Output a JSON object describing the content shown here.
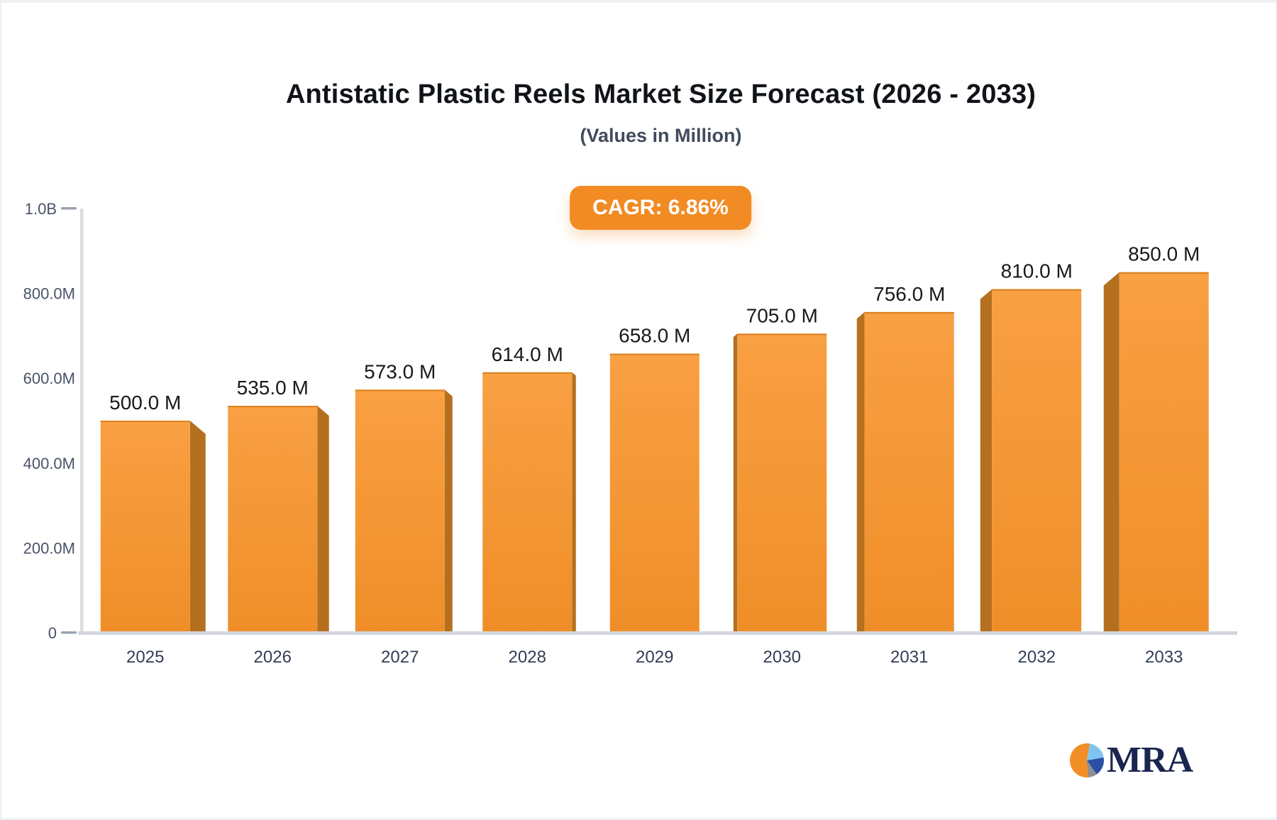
{
  "header": {
    "title": "Antistatic Plastic Reels Market Size Forecast (2026 - 2033)",
    "subtitle": "(Values in Million)",
    "cagr_label": "CAGR: 6.86%"
  },
  "branding": {
    "logo_text": "MRA"
  },
  "colors": {
    "bar_face_top": "#F9A043",
    "bar_face_bottom": "#EF8E28",
    "bar_side": "#B5701F",
    "bar_top_edge": "#D8801F",
    "badge_bg": "#F28B24",
    "badge_text": "#FFFFFF",
    "axis_line": "#DADCE1",
    "baseline": "#D3D7DC",
    "tick_dash": "#9BA3B0",
    "y_tick_label": "#4A5468",
    "x_tick_label": "#323E56",
    "value_label": "#17191D",
    "title": "#101318",
    "subtitle": "#414B5C",
    "logo_navy": "#1A2550",
    "logo_orange": "#F28E26",
    "logo_lightblue": "#7FC4F0",
    "logo_blue": "#2B4FA2",
    "logo_gray": "#8E8E93"
  },
  "chart_data": {
    "type": "bar",
    "title": "Antistatic Plastic Reels Market Size Forecast (2026 - 2033)",
    "subtitle": "(Values in Million)",
    "cagr": "6.86%",
    "categories": [
      "2025",
      "2026",
      "2027",
      "2028",
      "2029",
      "2030",
      "2031",
      "2032",
      "2033"
    ],
    "values": [
      500,
      535,
      573,
      614,
      658,
      705,
      756,
      810,
      850
    ],
    "value_labels": [
      "500.0 M",
      "535.0 M",
      "573.0 M",
      "614.0 M",
      "658.0 M",
      "705.0 M",
      "756.0 M",
      "810.0 M",
      "850.0 M"
    ],
    "unit": "Million",
    "xlabel": "",
    "ylabel": "",
    "ylim": [
      0,
      1000
    ],
    "y_ticks": [
      "0",
      "200.0M",
      "400.0M",
      "600.0M",
      "800.0M",
      "1.0B"
    ],
    "grid": false,
    "legend": false,
    "style": "3d-perspective, center vanishing point, orange bars"
  }
}
